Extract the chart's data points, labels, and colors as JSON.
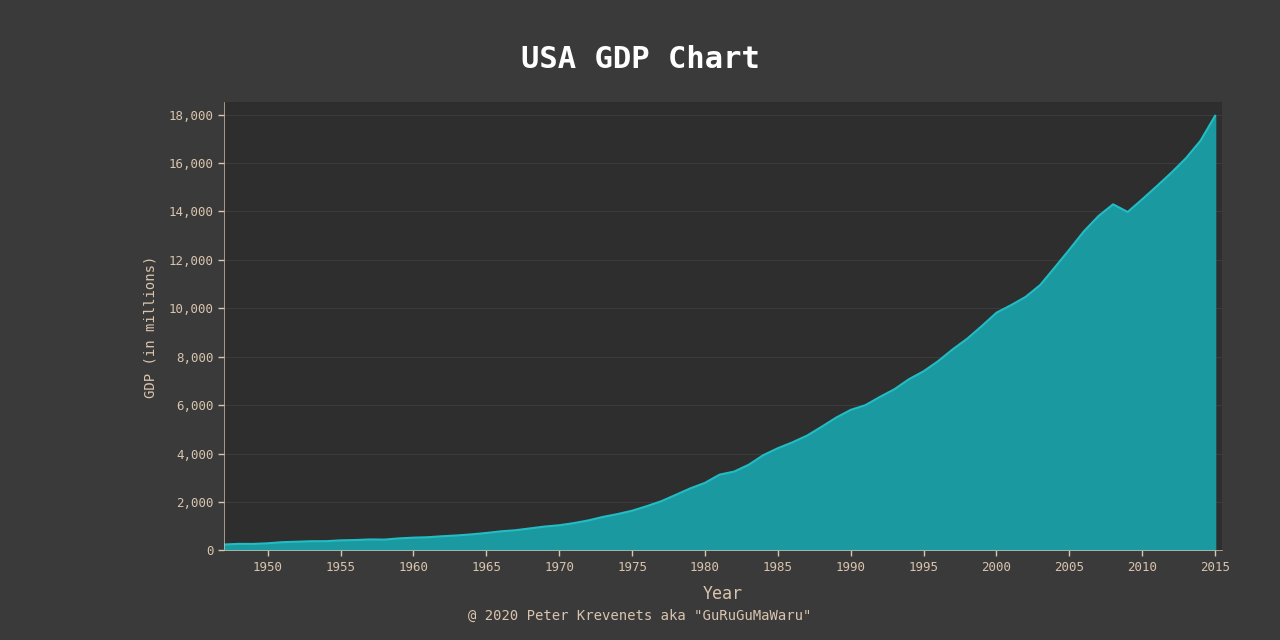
{
  "title": "USA GDP Chart",
  "xlabel": "Year",
  "ylabel": "GDP (in millions)",
  "background_color": "#3a3a3a",
  "plot_bg_color": "#2e2e2e",
  "bar_color": "#1a9aa0",
  "bar_edge_color": "#22bcc4",
  "text_color": "#d9c4ae",
  "title_color": "#ffffff",
  "footer_text": "@ 2020 Peter Krevenets aka \"GuRuGuMaWaru\"",
  "footer_bg": "#2a2a2a",
  "x_ticks": [
    1950,
    1955,
    1960,
    1965,
    1970,
    1975,
    1980,
    1985,
    1990,
    1995,
    2000,
    2005,
    2010,
    2015
  ],
  "y_ticks": [
    0,
    2000,
    4000,
    6000,
    8000,
    10000,
    12000,
    14000,
    16000,
    18000
  ],
  "ylim": [
    0,
    18500
  ],
  "years": [
    1947,
    1948,
    1949,
    1950,
    1951,
    1952,
    1953,
    1954,
    1955,
    1956,
    1957,
    1958,
    1959,
    1960,
    1961,
    1962,
    1963,
    1964,
    1965,
    1966,
    1967,
    1968,
    1969,
    1970,
    1971,
    1972,
    1973,
    1974,
    1975,
    1976,
    1977,
    1978,
    1979,
    1980,
    1981,
    1982,
    1983,
    1984,
    1985,
    1986,
    1987,
    1988,
    1989,
    1990,
    1991,
    1992,
    1993,
    1994,
    1995,
    1996,
    1997,
    1998,
    1999,
    2000,
    2001,
    2002,
    2003,
    2004,
    2005,
    2006,
    2007,
    2008,
    2009,
    2010,
    2011,
    2012,
    2013,
    2014,
    2015
  ],
  "gdp": [
    244.2,
    269.2,
    267.3,
    293.8,
    339.3,
    358.3,
    379.4,
    380.4,
    415.2,
    427.6,
    452.5,
    446.1,
    495.8,
    526.4,
    544.7,
    585.6,
    617.8,
    663.6,
    719.1,
    787.8,
    832.6,
    909.8,
    984.6,
    1038.3,
    1127.1,
    1238.3,
    1382.7,
    1500.0,
    1638.3,
    1825.3,
    2030.9,
    2294.7,
    2563.3,
    2789.5,
    3128.4,
    3255.0,
    3536.7,
    3933.2,
    4220.3,
    4462.8,
    4739.5,
    5103.8,
    5484.4,
    5803.1,
    5995.9,
    6337.7,
    6657.4,
    7072.2,
    7397.7,
    7816.9,
    8304.3,
    8747.0,
    9268.4,
    9817.0,
    10128.0,
    10469.6,
    10960.8,
    11685.9,
    12421.9,
    13178.4,
    13807.5,
    14291.5,
    13973.7,
    14498.9,
    15041.2,
    15596.8,
    16197.0,
    16920.3,
    17947.0
  ]
}
